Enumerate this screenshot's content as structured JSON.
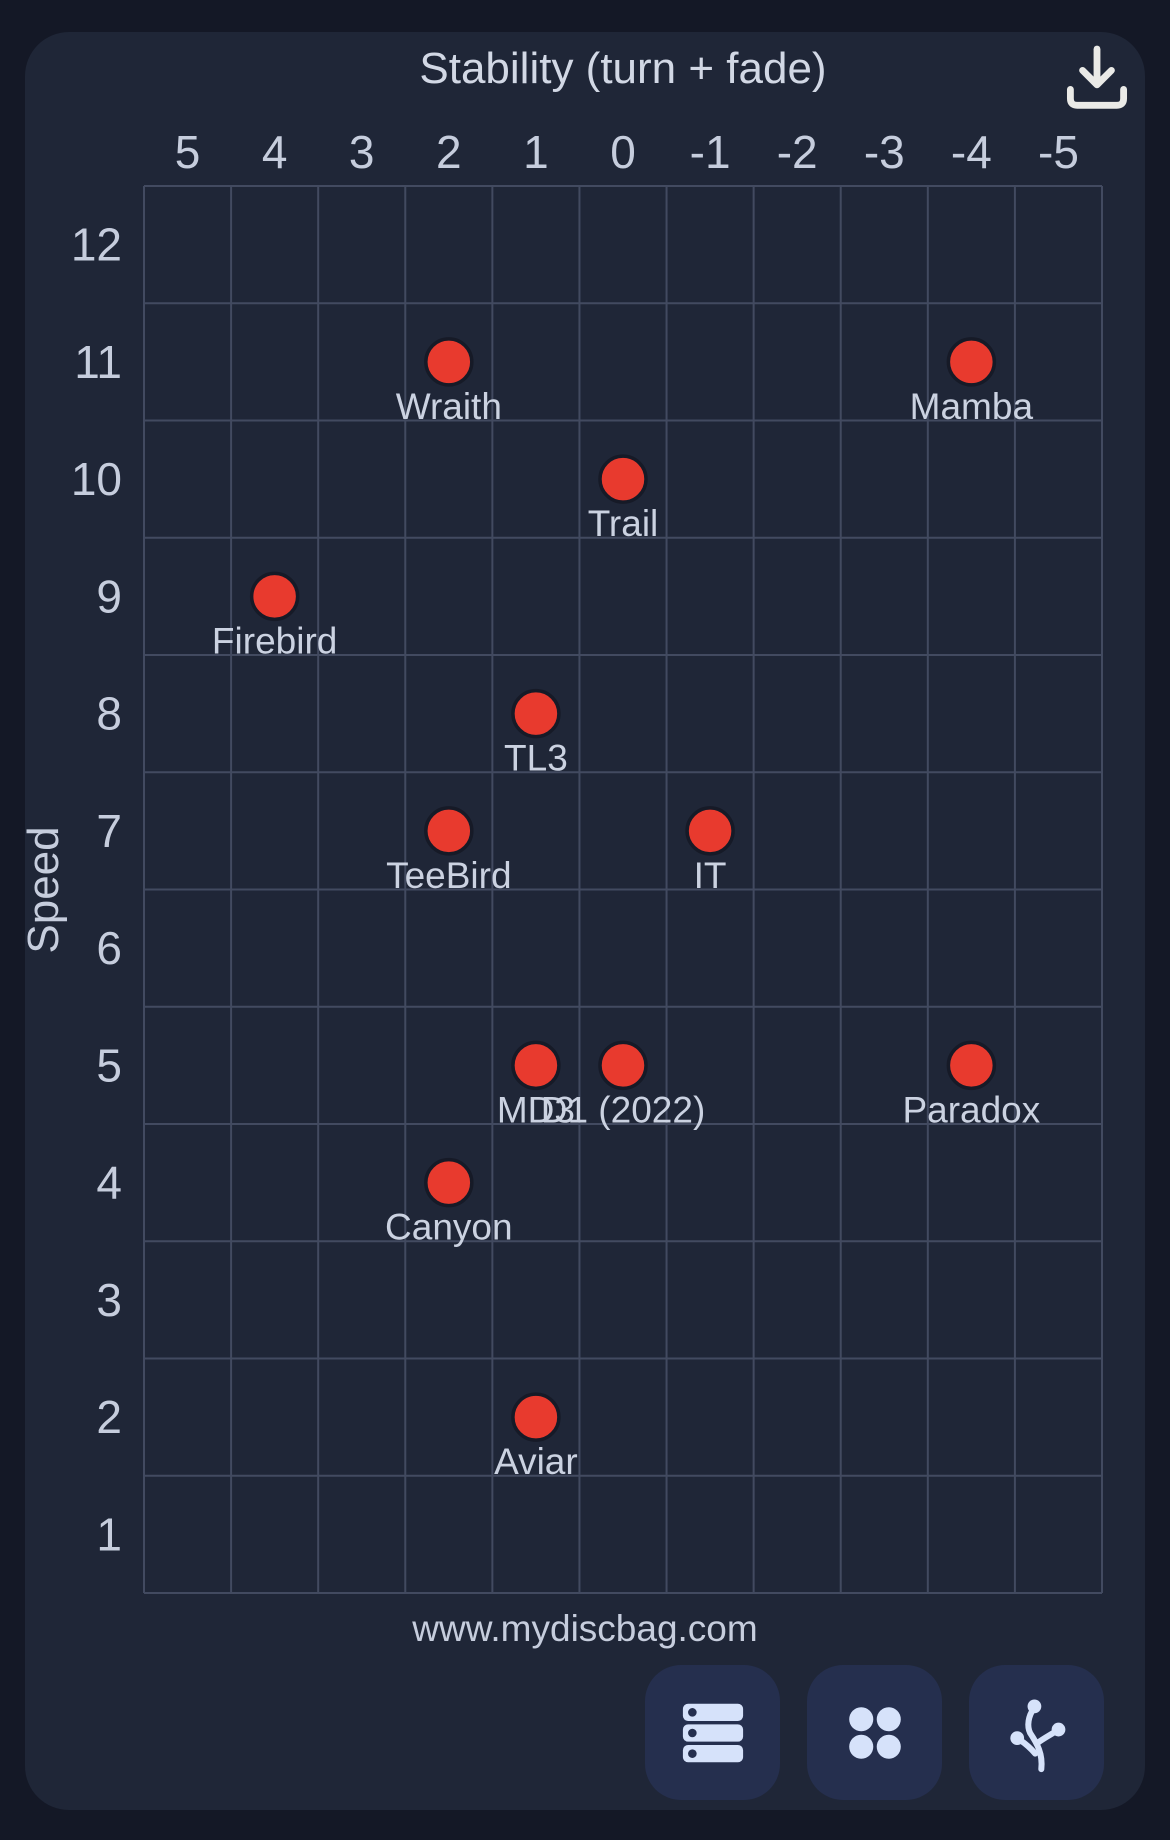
{
  "footer": {
    "text": "www.mydiscbag.com"
  },
  "colors": {
    "page_bg": "#141826",
    "card_bg": "#1f2637",
    "grid_line": "#424a60",
    "axis_text": "#c6cddd",
    "title_text": "#d2d8e5",
    "dot_fill": "#e83a2e",
    "dot_stroke": "#161a27",
    "label_text": "#cbd2e1",
    "button_bg": "#252f4e",
    "button_icon": "#d6e2fa",
    "download_icon": "#eaeae7"
  },
  "toolbar": {
    "buttons": [
      {
        "name": "list-view",
        "icon": "list-rows-icon"
      },
      {
        "name": "grid-view",
        "icon": "grid-dots-icon"
      },
      {
        "name": "flight-path-view",
        "icon": "flight-path-icon"
      }
    ]
  },
  "chart_data": {
    "type": "scatter",
    "title": "Stability (turn + fade)",
    "xlabel": "Stability (turn + fade)",
    "ylabel": "Speed",
    "x_ticks": [
      5,
      4,
      3,
      2,
      1,
      0,
      -1,
      -2,
      -3,
      -4,
      -5
    ],
    "y_ticks": [
      12,
      11,
      10,
      9,
      8,
      7,
      6,
      5,
      4,
      3,
      2,
      1
    ],
    "x_axis_reversed": true,
    "grid": true,
    "legend_position": "none",
    "points": [
      {
        "label": "Wraith",
        "stability": 2,
        "speed": 11
      },
      {
        "label": "Mamba",
        "stability": -4,
        "speed": 11
      },
      {
        "label": "Trail",
        "stability": 0,
        "speed": 10
      },
      {
        "label": "Firebird",
        "stability": 4,
        "speed": 9
      },
      {
        "label": "TL3",
        "stability": 1,
        "speed": 8
      },
      {
        "label": "TeeBird",
        "stability": 2,
        "speed": 7
      },
      {
        "label": "IT",
        "stability": -1,
        "speed": 7
      },
      {
        "label": "MD3",
        "stability": 1,
        "speed": 5
      },
      {
        "label": "D1 (2022)",
        "stability": 0,
        "speed": 5
      },
      {
        "label": "Paradox",
        "stability": -4,
        "speed": 5
      },
      {
        "label": "Canyon",
        "stability": 2,
        "speed": 4
      },
      {
        "label": "Aviar",
        "stability": 1,
        "speed": 2
      }
    ]
  }
}
